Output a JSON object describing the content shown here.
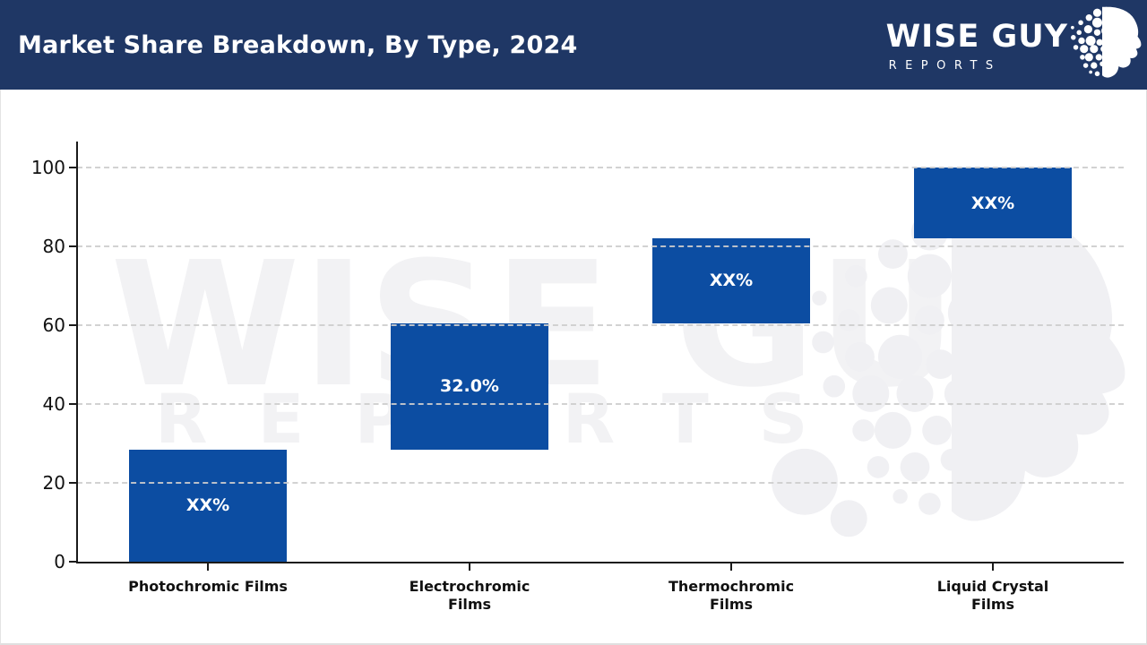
{
  "header": {
    "title": "Market Share Breakdown, By Type, 2024",
    "logo": {
      "name_top": "WISE GUY",
      "name_bottom": "REPORTS"
    }
  },
  "watermark": {
    "text_top": "WISE GUY",
    "text_bottom": "REPORTS"
  },
  "chart_data": {
    "type": "bar",
    "subtype": "waterfall-segments",
    "title": "Market Share Breakdown, By Type, 2024",
    "categories": [
      "Photochromic Films",
      "Electrochromic Films",
      "Thermochromic Films",
      "Liquid Crystal Films"
    ],
    "category_label_lines": [
      [
        "Photochromic Films"
      ],
      [
        "Electrochromic",
        "Films"
      ],
      [
        "Thermochromic",
        "Films"
      ],
      [
        "Liquid Crystal",
        "Films"
      ]
    ],
    "segments": [
      {
        "category": "Photochromic Films",
        "label": "XX%",
        "start": 0,
        "end": 28.5
      },
      {
        "category": "Electrochromic Films",
        "label": "32.0%",
        "start": 28.5,
        "end": 60.5
      },
      {
        "category": "Thermochromic Films",
        "label": "XX%",
        "start": 60.5,
        "end": 82
      },
      {
        "category": "Liquid Crystal Films",
        "label": "XX%",
        "start": 82,
        "end": 100
      }
    ],
    "yticks": [
      0,
      20,
      40,
      60,
      80,
      100
    ],
    "ylim": [
      0,
      106
    ],
    "xlabel": "",
    "ylabel": "",
    "grid": {
      "visible": true,
      "style": "dashed",
      "color": "#d4d4d4",
      "over_bars": true
    },
    "legend": "none",
    "bar_color": "#0c4da2",
    "value_label_color": "#ffffff"
  },
  "colors": {
    "header_bg": "#1f3765",
    "bar": "#0c4da2",
    "axis": "#1a1a1a",
    "grid": "#d4d4d4",
    "watermark": "#f2f2f4",
    "card_border": "#dcdcdc",
    "title_text": "#ffffff"
  }
}
